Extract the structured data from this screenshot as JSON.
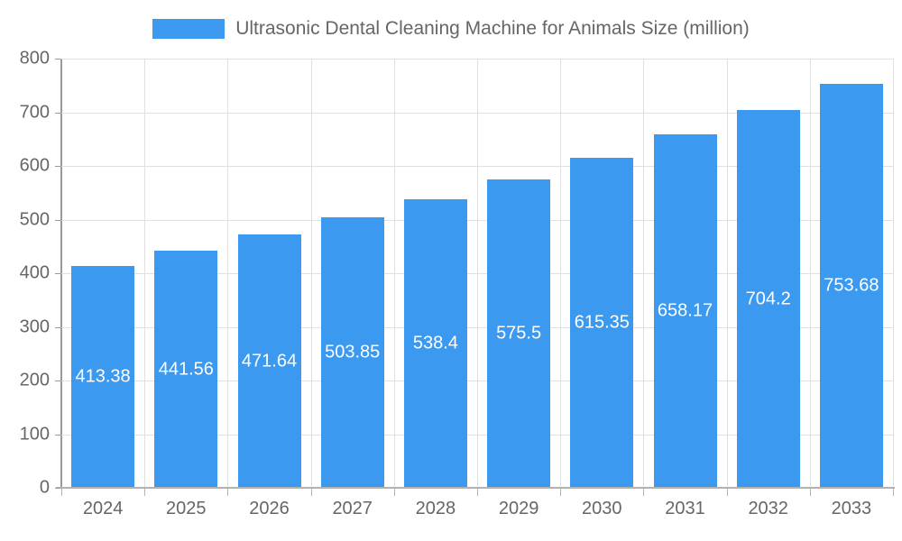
{
  "legend": {
    "label": "Ultrasonic Dental Cleaning Machine for Animals Size (million)"
  },
  "chart_data": {
    "type": "bar",
    "title": "Ultrasonic Dental Cleaning Machine for Animals Size (million)",
    "categories": [
      "2024",
      "2025",
      "2026",
      "2027",
      "2028",
      "2029",
      "2030",
      "2031",
      "2032",
      "2033"
    ],
    "values": [
      413.38,
      441.56,
      471.64,
      503.85,
      538.4,
      575.5,
      615.35,
      658.17,
      704.2,
      753.68
    ],
    "value_labels": [
      "413.38",
      "441.56",
      "471.64",
      "503.85",
      "538.4",
      "575.5",
      "615.35",
      "658.17",
      "704.2",
      "753.68"
    ],
    "xlabel": "",
    "ylabel": "",
    "ylim": [
      0,
      800
    ],
    "yticks": [
      0,
      100,
      200,
      300,
      400,
      500,
      600,
      700,
      800
    ],
    "grid": "both",
    "legend_position": "top",
    "value_label_position": "inside-center"
  },
  "colors": {
    "bar": "#3b99f0",
    "bar_label": "#ffffff",
    "axis_text": "#666666",
    "grid_line": "#e0e0e0",
    "y_axis_line": "#999999",
    "x_axis_line": "#b3b3b3",
    "background": "#ffffff"
  }
}
